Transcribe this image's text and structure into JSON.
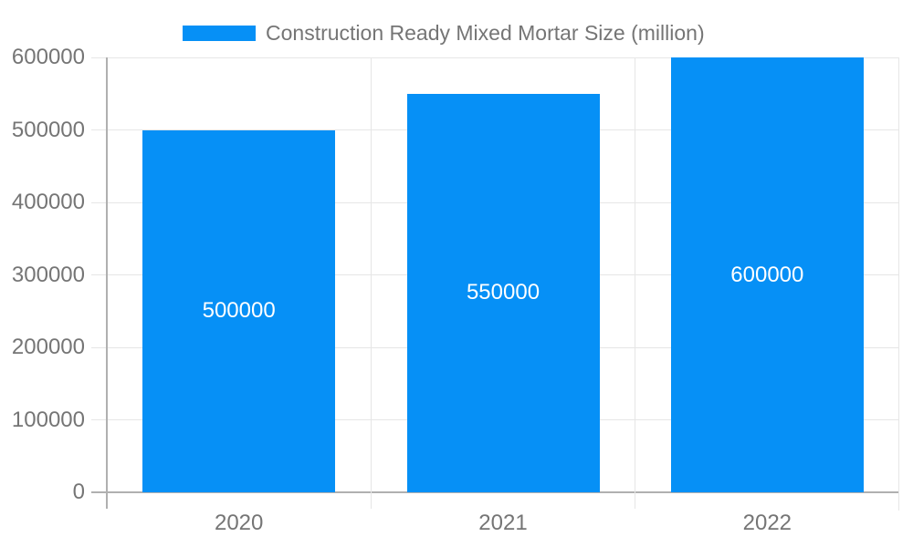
{
  "legend": {
    "label": "Construction Ready Mixed Mortar Size (million)"
  },
  "chart_data": {
    "type": "bar",
    "title": "Construction Ready Mixed Mortar Size (million)",
    "categories": [
      "2020",
      "2021",
      "2022"
    ],
    "series": [
      {
        "name": "Construction Ready Mixed Mortar Size (million)",
        "values": [
          500000,
          550000,
          600000
        ]
      }
    ],
    "bar_labels": [
      "500000",
      "550000",
      "600000"
    ],
    "ytick_labels": [
      "0",
      "100000",
      "200000",
      "300000",
      "400000",
      "500000",
      "600000"
    ],
    "ylim": [
      0,
      600000
    ],
    "ytick_step": 100000,
    "xlabel": "",
    "ylabel": "",
    "grid": true,
    "legend_position": "top"
  },
  "colors": {
    "bar": "#0690f6",
    "axis_text": "#757575",
    "bar_label_text": "#ffffff",
    "gridline": "#e6e6e6",
    "axis_line": "#b0b0b0",
    "background": "#ffffff"
  }
}
